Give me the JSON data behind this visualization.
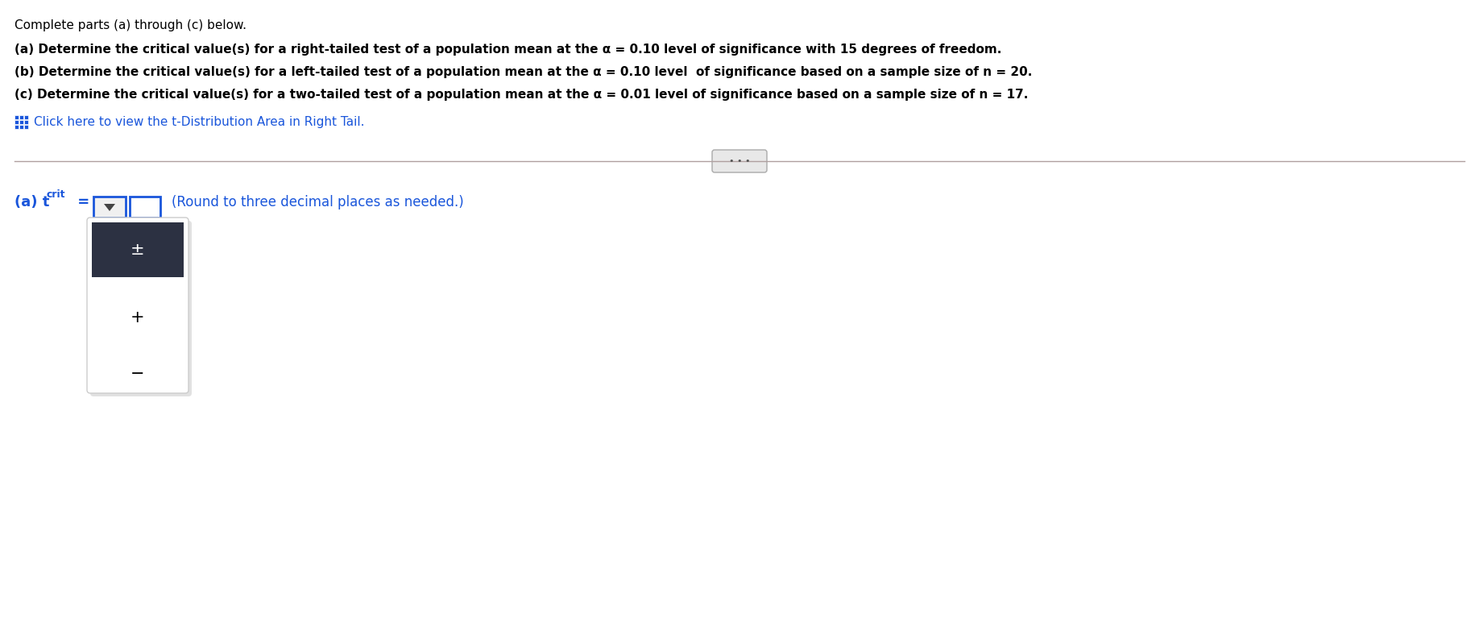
{
  "background_color": "#ffffff",
  "title_line": "Complete parts (a) through (c) below.",
  "line_a": "(a) Determine the critical value(s) for a right-tailed test of a population mean at the α = 0.10 level of significance with 15 degrees of freedom.",
  "line_b": "(b) Determine the critical value(s) for a left-tailed test of a population mean at the α = 0.10 level  of significance based on a sample size of n = 20.",
  "line_c": "(c) Determine the critical value(s) for a two-tailed test of a population mean at the α = 0.01 level of significance based on a sample size of n = 17.",
  "link_line": "Click here to view the t-Distribution Area in Right Tail.",
  "round_note": "(Round to three decimal places as needed.)",
  "dropdown_symbols": [
    "±",
    "+",
    "−"
  ],
  "text_color_normal": "#000000",
  "text_color_bold": "#000000",
  "text_color_link": "#1a56db",
  "text_color_answer": "#1a56db",
  "separator_color": "#b0a0a0",
  "dots_button_color": "#e8e8e8",
  "dropdown_box_color": "#1a56db",
  "dropdown_bg_color": "#2c3142",
  "input_box_color": "#1a56db",
  "dropdown_menu_bg": "#ffffff",
  "dropdown_menu_border": "#cccccc",
  "grid_icon_color": "#1a56db",
  "shadow_color": "#aaaaaa"
}
